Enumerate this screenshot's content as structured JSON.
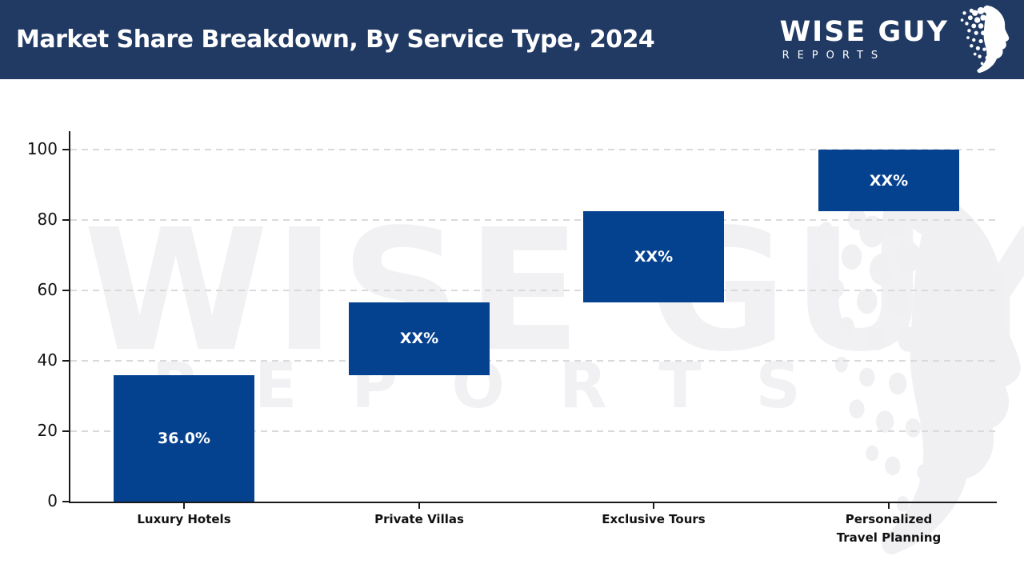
{
  "header": {
    "title": "Market Share Breakdown, By Service Type, 2024",
    "logo": {
      "line1": "WISE GUY",
      "line2": "REPORTS"
    }
  },
  "watermark": {
    "line1": "WISE GUY",
    "line2": "REPORTS"
  },
  "colors": {
    "header_bg": "#213a64",
    "bar": "#04418f",
    "bar_label": "#ffffff",
    "grid": "#dadada",
    "axis": "#1a1a1a",
    "watermark": "#f1f1f4"
  },
  "chart_data": {
    "type": "bar",
    "subtype": "waterfall",
    "title": "Market Share Breakdown, By Service Type, 2024",
    "categories": [
      "Luxury Hotels",
      "Private Villas",
      "Exclusive Tours",
      "Personalized Travel Planning"
    ],
    "bars": [
      {
        "category": "Luxury Hotels",
        "start": 0,
        "end": 36,
        "label": "36.0%"
      },
      {
        "category": "Private Villas",
        "start": 36,
        "end": 56.5,
        "label": "XX%"
      },
      {
        "category": "Exclusive Tours",
        "start": 56.5,
        "end": 82.5,
        "label": "XX%"
      },
      {
        "category": "Personalized Travel Planning",
        "start": 82.5,
        "end": 100,
        "label": "XX%"
      }
    ],
    "ylim": [
      0,
      100
    ],
    "yticks": [
      0,
      20,
      40,
      60,
      80,
      100
    ],
    "xlabel": "",
    "ylabel": "",
    "grid": "horizontal-dashed",
    "legend": "none"
  }
}
